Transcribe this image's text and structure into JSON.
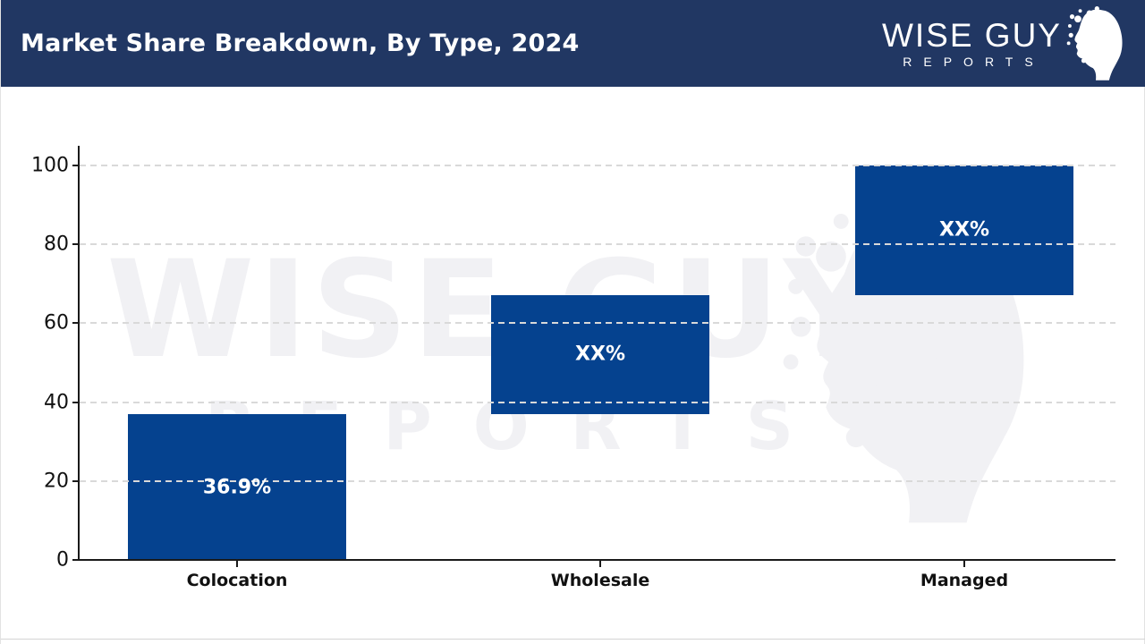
{
  "header": {
    "title": "Market Share Breakdown, By Type, 2024",
    "bg_color": "#213763",
    "logo": {
      "line1": "WISE GUY",
      "line2": "REPORTS"
    }
  },
  "watermark": {
    "line1": "WISE GUY",
    "line2": "REPORTS",
    "color": "#f1f1f4"
  },
  "chart_data": {
    "type": "bar",
    "subtype": "waterfall",
    "title": "Market Share Breakdown, By Type, 2024",
    "categories": [
      "Colocation",
      "Wholesale",
      "Managed"
    ],
    "segments": [
      {
        "category": "Colocation",
        "start": 0,
        "end": 36.9,
        "label": "36.9%"
      },
      {
        "category": "Wholesale",
        "start": 36.9,
        "end": 67.2,
        "label": "XX%"
      },
      {
        "category": "Managed",
        "start": 67.2,
        "end": 100,
        "label": "XX%"
      }
    ],
    "xlabel": "",
    "ylabel": "",
    "ylim": [
      0,
      105
    ],
    "yticks": [
      0,
      20,
      40,
      60,
      80,
      100
    ],
    "grid": {
      "axis": "y",
      "style": "dashed",
      "color": "#d9d9d9"
    },
    "legend": "none",
    "bar_color": "#05428f",
    "bar_label_color": "#ffffff",
    "axis_color": "#1a1a1a"
  }
}
